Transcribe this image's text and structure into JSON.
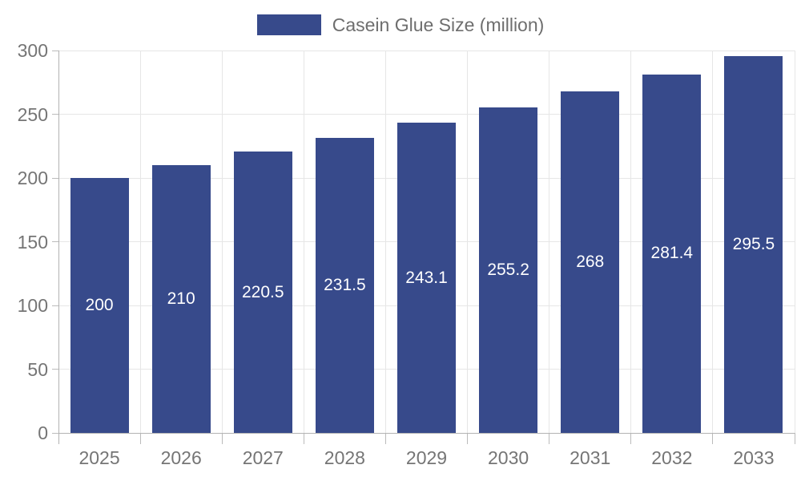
{
  "chart_data": {
    "type": "bar",
    "title": "Casein Glue Size (million)",
    "categories": [
      "2025",
      "2026",
      "2027",
      "2028",
      "2029",
      "2030",
      "2031",
      "2032",
      "2033"
    ],
    "series": [
      {
        "name": "Casein Glue Size (million)",
        "values": [
          200,
          210,
          220.5,
          231.5,
          243.1,
          255.2,
          268,
          281.4,
          295.5
        ],
        "data_labels": [
          "200",
          "210",
          "220.5",
          "231.5",
          "243.1",
          "255.2",
          "268",
          "281.4",
          "295.5"
        ]
      }
    ],
    "xlabel": "",
    "ylabel": "",
    "ylim": [
      0,
      300
    ],
    "yticks": [
      0,
      50,
      100,
      150,
      200,
      250,
      300
    ],
    "ytick_labels": [
      "0",
      "50",
      "100",
      "150",
      "200",
      "250",
      "300"
    ],
    "grid": true,
    "legend_position": "top",
    "data_label_position": "inside-center",
    "colors": {
      "bar": "#374A8B",
      "data_label_text": "#ffffff",
      "axis_line": "#b3b3b3",
      "tick_mark": "#bbbbbb",
      "grid_line": "#e6e6e6",
      "tick_text": "#757575",
      "legend_text": "#6e6e6e",
      "background": "#ffffff"
    }
  }
}
